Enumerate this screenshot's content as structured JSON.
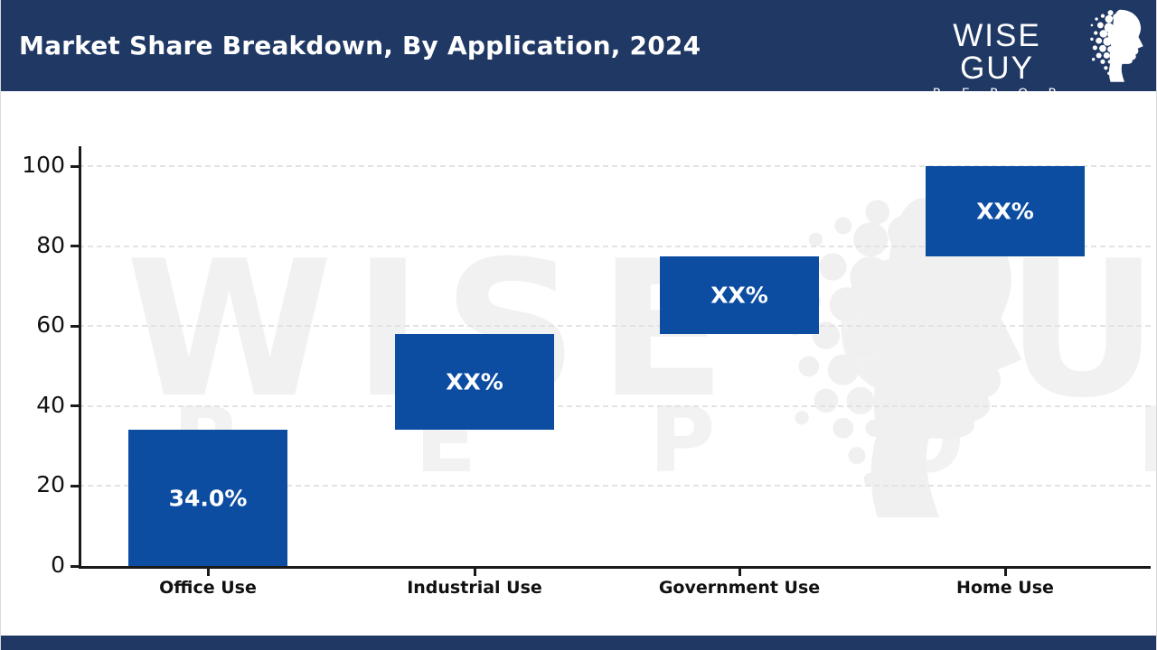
{
  "header": {
    "title": "Market Share Breakdown, By Application, 2024",
    "brand_line1": "WISE GUY",
    "brand_line2": "R E P O R T S"
  },
  "watermark": {
    "line1": "WISE GUY",
    "line2": "R E P O R T S"
  },
  "colors": {
    "header_navy": "#1f3864",
    "bar_blue": "#0c4da2",
    "grid_gray": "#e3e3e3",
    "watermark_gray": "#f1f1f1",
    "axis_black": "#1a1a1a",
    "bar_label_white": "#ffffff"
  },
  "chart_data": {
    "type": "bar",
    "subtype": "waterfall",
    "title": "Market Share Breakdown, By Application, 2024",
    "categories": [
      "Office Use",
      "Industrial Use",
      "Government Use",
      "Home Use"
    ],
    "segments": [
      {
        "category": "Office Use",
        "start": 0,
        "end": 34,
        "label": "34.0%"
      },
      {
        "category": "Industrial Use",
        "start": 34,
        "end": 58,
        "label": "XX%"
      },
      {
        "category": "Government Use",
        "start": 58,
        "end": 77.5,
        "label": "XX%"
      },
      {
        "category": "Home Use",
        "start": 77.5,
        "end": 100,
        "label": "XX%"
      }
    ],
    "xlabel": "",
    "ylabel": "",
    "ylim": [
      0,
      100
    ],
    "yticks": [
      0,
      20,
      40,
      60,
      80,
      100
    ],
    "grid": "horizontal-dashed",
    "legend": "none"
  }
}
